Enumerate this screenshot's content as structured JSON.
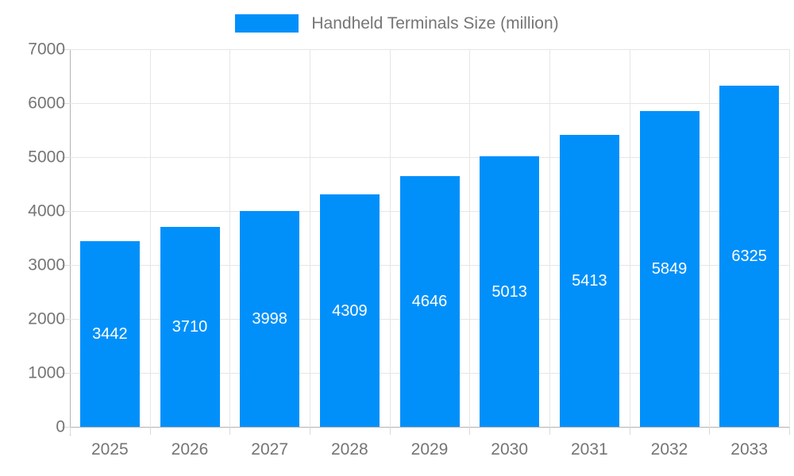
{
  "legend": {
    "label": "Handheld Terminals Size (million)"
  },
  "colors": {
    "bar": "#0190fa",
    "axis_text": "#757575",
    "grid": "#e6e6e6",
    "axis_line": "#b3b3b3",
    "value_text": "#ffffff",
    "background": "#ffffff"
  },
  "chart_data": {
    "type": "bar",
    "title": "Handheld Terminals Size (million)",
    "categories": [
      "2025",
      "2026",
      "2027",
      "2028",
      "2029",
      "2030",
      "2031",
      "2032",
      "2033"
    ],
    "values": [
      3442,
      3710,
      3998,
      4309,
      4646,
      5013,
      5413,
      5849,
      6325
    ],
    "xlabel": "",
    "ylabel": "",
    "ylim": [
      0,
      7000
    ],
    "yticks": [
      0,
      1000,
      2000,
      3000,
      4000,
      5000,
      6000,
      7000
    ],
    "grid": true,
    "legend_position": "top-center",
    "value_labels": "inside-center"
  }
}
